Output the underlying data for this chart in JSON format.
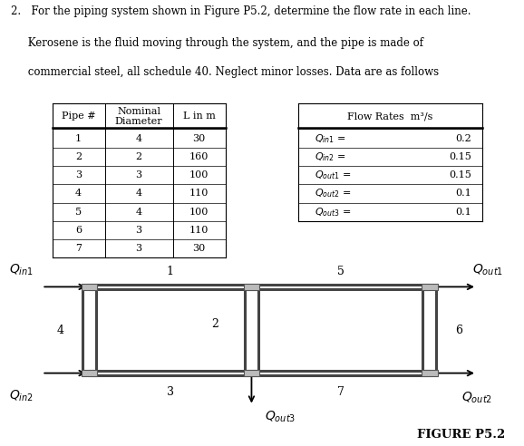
{
  "problem_text_line1": "2.   For the piping system shown in Figure P5.2, determine the flow rate in each line.",
  "problem_text_line2": "     Kerosene is the fluid moving through the system, and the pipe is made of",
  "problem_text_line3": "     commercial steel, all schedule 40. Neglect minor losses. Data are as follows",
  "table1_headers": [
    "Pipe #",
    "Nominal\nDiameter",
    "L in m"
  ],
  "table1_rows": [
    [
      "1",
      "4",
      "30"
    ],
    [
      "2",
      "2",
      "160"
    ],
    [
      "3",
      "3",
      "100"
    ],
    [
      "4",
      "4",
      "110"
    ],
    [
      "5",
      "4",
      "100"
    ],
    [
      "6",
      "3",
      "110"
    ],
    [
      "7",
      "3",
      "30"
    ]
  ],
  "table2_header": "Flow Rates  m³/s",
  "table2_rows": [
    [
      "$Q_{in1}$",
      "0.2"
    ],
    [
      "$Q_{in2}$",
      "0.15"
    ],
    [
      "$Q_{out1}$",
      "0.15"
    ],
    [
      "$Q_{out2}$",
      "0.1"
    ],
    [
      "$Q_{out3}$",
      "0.1"
    ]
  ],
  "figure_caption": "FIGURE P5.2",
  "bg_color": "#ffffff",
  "pipe_color": "#444444"
}
